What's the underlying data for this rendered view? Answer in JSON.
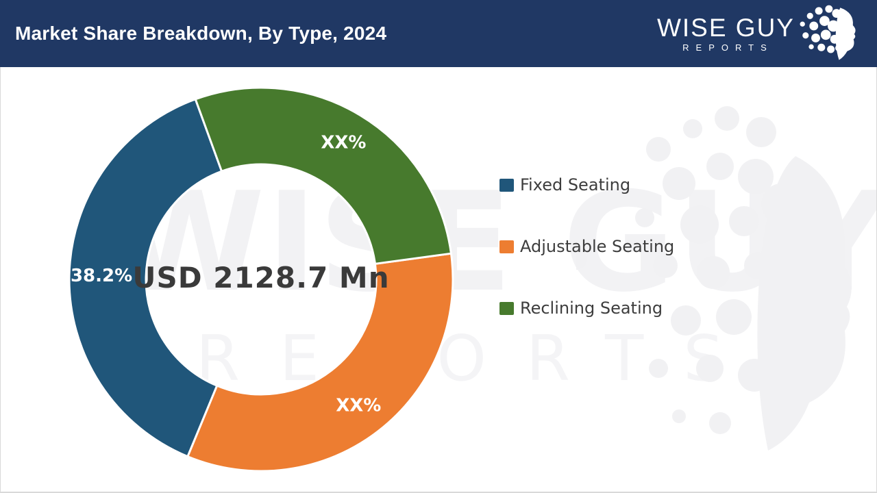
{
  "header": {
    "title": "Market Share Breakdown, By Type, 2024",
    "background_color": "#203864",
    "logo": {
      "line1": "WISE GUY",
      "line2": "REPORTS"
    }
  },
  "watermark": {
    "line1": "WISE GUY",
    "line2": "REPORTS"
  },
  "chart_data": {
    "type": "pie",
    "donut": true,
    "title": "Market Share Breakdown, By Type, 2024",
    "center_label": "USD 2128.7 Mn",
    "start_angle_deg": 110,
    "direction": "counterclockwise",
    "inner_radius_ratio": 0.6,
    "legend_position": "right",
    "segments": [
      {
        "label": "Fixed Seating",
        "display": "38.2%",
        "value_pct": 38.2,
        "color": "#20567A"
      },
      {
        "label": "Adjustable Seating",
        "display": "XX%",
        "value_pct": 33.4,
        "color": "#ED7D31"
      },
      {
        "label": "Reclining Seating",
        "display": "XX%",
        "value_pct": 28.4,
        "color": "#477A2D"
      }
    ]
  }
}
